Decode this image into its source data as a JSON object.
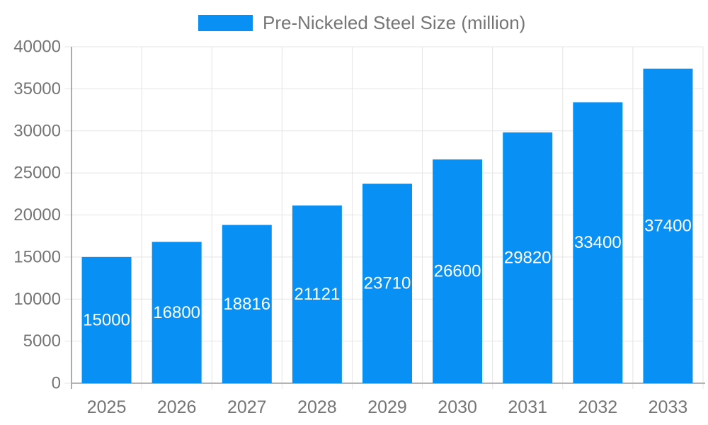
{
  "chart_data": {
    "type": "bar",
    "title": "Pre-Nickeled Steel Size (million)",
    "categories": [
      "2025",
      "2026",
      "2027",
      "2028",
      "2029",
      "2030",
      "2031",
      "2032",
      "2033"
    ],
    "values": [
      15000,
      16800,
      18816,
      21121,
      23710,
      26600,
      29820,
      33400,
      37400
    ],
    "bar_labels": [
      "15000",
      "16800",
      "18816",
      "21121",
      "23710",
      "26600",
      "29820",
      "33400",
      "37400"
    ],
    "xlabel": "",
    "ylabel": "",
    "ylim": [
      0,
      40000
    ],
    "y_ticks": [
      0,
      5000,
      10000,
      15000,
      20000,
      25000,
      30000,
      35000,
      40000
    ],
    "grid": "on",
    "legend_position": "top-center",
    "colors": {
      "bar": "#0890F5",
      "bar_value_text": "#ffffff",
      "axis_text": "#757575",
      "gridline": "#e4e4e4",
      "y_axis_line": "#8f8f8f",
      "x_axis_line": "#b3b3b3"
    }
  }
}
